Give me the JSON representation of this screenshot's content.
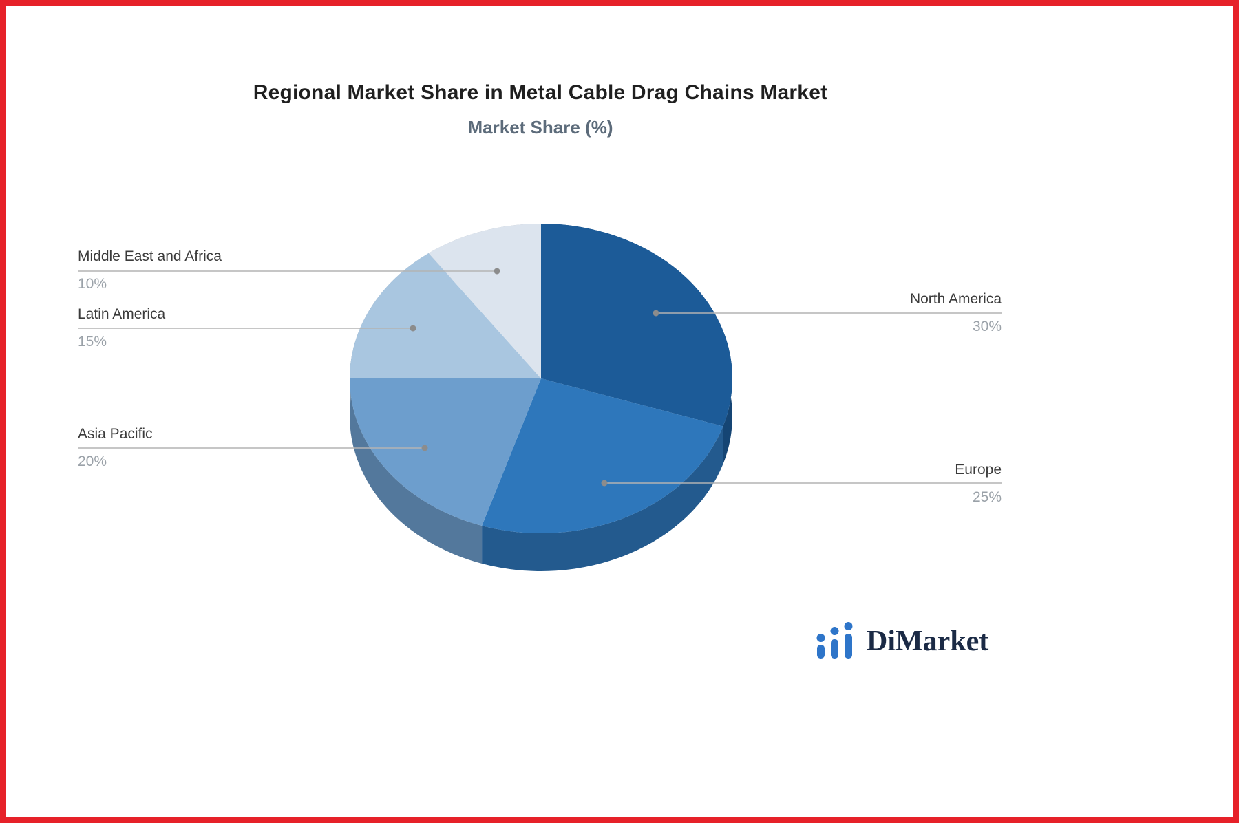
{
  "page": {
    "title": "Regional Market Share in Metal Cable Drag Chains Market",
    "subtitle": "Market Share (%)"
  },
  "chart_data": {
    "type": "pie",
    "style": "3d",
    "title": "Regional Market Share in Metal Cable Drag Chains Market",
    "subtitle": "Market Share (%)",
    "unit": "%",
    "start_angle_deg": 0,
    "direction": "clockwise",
    "legend_position": "callout-labels",
    "slices": [
      {
        "label": "North America",
        "value": 30,
        "display": "30%",
        "color": "#1C5B98",
        "callout_side": "right"
      },
      {
        "label": "Europe",
        "value": 25,
        "display": "25%",
        "color": "#2E77BB",
        "callout_side": "right"
      },
      {
        "label": "Asia Pacific",
        "value": 20,
        "display": "20%",
        "color": "#6D9ECD",
        "callout_side": "left"
      },
      {
        "label": "Latin America",
        "value": 15,
        "display": "15%",
        "color": "#A9C6E0",
        "callout_side": "left"
      },
      {
        "label": "Middle East and Africa",
        "value": 10,
        "display": "10%",
        "color": "#DCE4EE",
        "callout_side": "left"
      }
    ]
  },
  "branding": {
    "logo_text": "DiMarket",
    "logo_icon": "bar-chart-icon",
    "accent_color": "#2E75C9",
    "text_color": "#1B2A45"
  },
  "frame_color": "#E62129"
}
